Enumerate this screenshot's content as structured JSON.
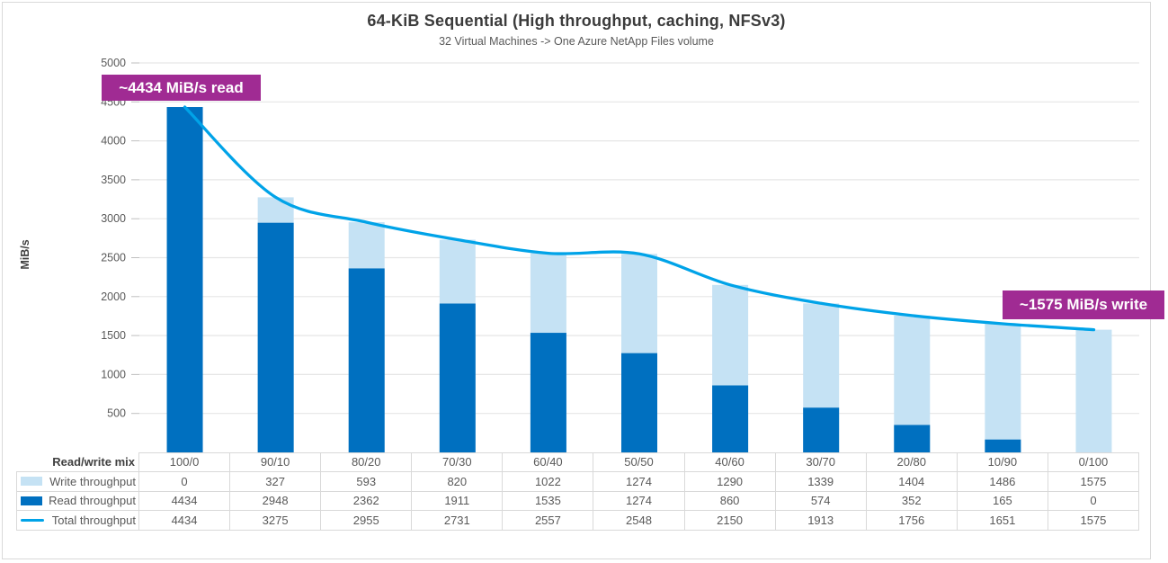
{
  "chart_data": {
    "type": "bar",
    "subtype": "stacked-bar-with-line-combo",
    "title": "64-KiB Sequential (High throughput, caching, NFSv3)",
    "subtitle": "32 Virtual Machines -> One Azure NetApp Files volume",
    "xlabel": "",
    "ylabel": "MiB/s",
    "x_header": "Read/write mix",
    "categories": [
      "100/0",
      "90/10",
      "80/20",
      "70/30",
      "60/40",
      "50/50",
      "40/60",
      "30/70",
      "20/80",
      "10/90",
      "0/100"
    ],
    "series": [
      {
        "name": "Write throughput",
        "render": "bar-stack-top",
        "color": "#c5e2f4",
        "values": [
          0,
          327,
          593,
          820,
          1022,
          1274,
          1290,
          1339,
          1404,
          1486,
          1575
        ]
      },
      {
        "name": "Read throughput",
        "render": "bar-stack-bottom",
        "color": "#0070c0",
        "values": [
          4434,
          2948,
          2362,
          1911,
          1535,
          1274,
          860,
          574,
          352,
          165,
          0
        ]
      },
      {
        "name": "Total throughput",
        "render": "smoothed-line",
        "color": "#00a3e8",
        "values": [
          4434,
          3275,
          2955,
          2731,
          2557,
          2548,
          2150,
          1913,
          1756,
          1651,
          1575
        ]
      }
    ],
    "ylim": [
      0,
      5000
    ],
    "y_ticks": [
      500,
      1000,
      1500,
      2000,
      2500,
      3000,
      3500,
      4000,
      4500,
      5000
    ],
    "grid": "horizontal",
    "legend_position": "data-table-below-chart"
  },
  "annotations": {
    "read_peak": "~4434 MiB/s read",
    "write_peak": "~1575 MiB/s write",
    "background_color": "#a02b93",
    "text_color": "#ffffff"
  },
  "colors": {
    "read_bar": "#0070c0",
    "write_bar": "#c5e2f4",
    "total_line": "#00a3e8",
    "gridline": "#e6e6e6",
    "tick_mark": "#bfbfbf",
    "table_border": "#d9d9d9",
    "frame_border": "#d9d9d9",
    "axis_text": "#595959",
    "title_text": "#3b3b3b"
  }
}
